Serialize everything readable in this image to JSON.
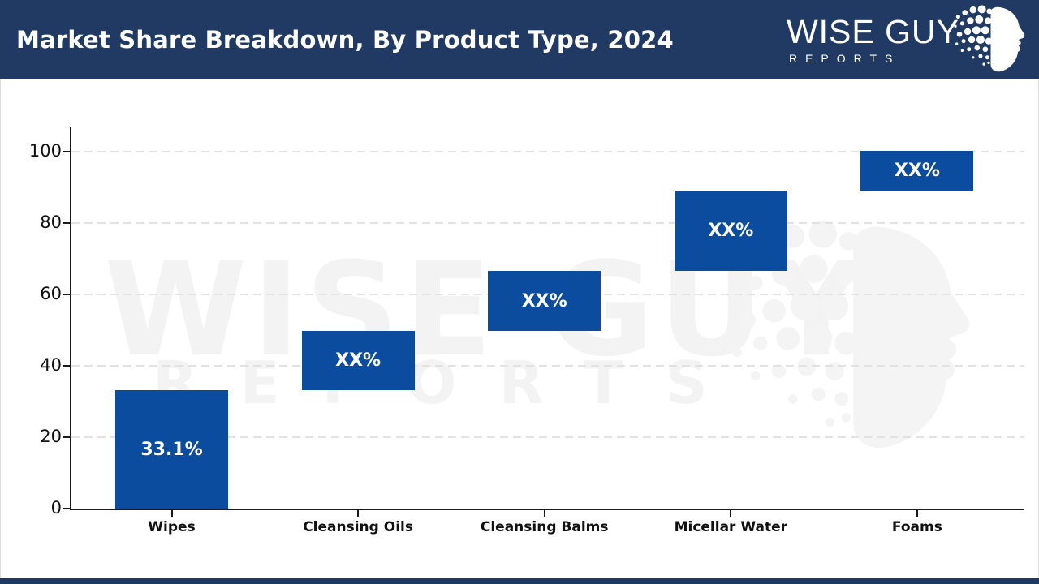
{
  "header": {
    "title": "Market Share Breakdown, By Product Type, 2024",
    "bg_color": "#213a64",
    "logo": {
      "wordmark": "WISE GUY",
      "subtext": "REPORTS"
    }
  },
  "watermark": {
    "line1": "WISE GUY",
    "line2": "REPORTS"
  },
  "chart_data": {
    "type": "bar",
    "subtype": "waterfall",
    "title": "Market Share Breakdown, By Product Type, 2024",
    "xlabel": "",
    "ylabel": "",
    "categories": [
      "Wipes",
      "Cleansing Oils",
      "Cleansing Balms",
      "Micellar Water",
      "Foams"
    ],
    "segments": [
      {
        "label": "Wipes",
        "start": 0,
        "end": 33.1,
        "value_label": "33.1%"
      },
      {
        "label": "Cleansing Oils",
        "start": 33.1,
        "end": 49.7,
        "value_label": "XX%"
      },
      {
        "label": "Cleansing Balms",
        "start": 49.7,
        "end": 66.6,
        "value_label": "XX%"
      },
      {
        "label": "Micellar Water",
        "start": 66.6,
        "end": 89.1,
        "value_label": "XX%"
      },
      {
        "label": "Foams",
        "start": 89.1,
        "end": 100.3,
        "value_label": "XX%"
      }
    ],
    "y_ticks": [
      0,
      20,
      40,
      60,
      80,
      100
    ],
    "ylim": [
      0,
      107
    ],
    "grid": "horizontal-dashed",
    "legend": "none",
    "bar_color": "#0b4c9f",
    "bar_label_color": "#ffffff",
    "axis_color": "#1a1a1a",
    "grid_color": "#e2e2e2",
    "header_color": "#213a64",
    "watermark_color": "#f3f3f3"
  }
}
